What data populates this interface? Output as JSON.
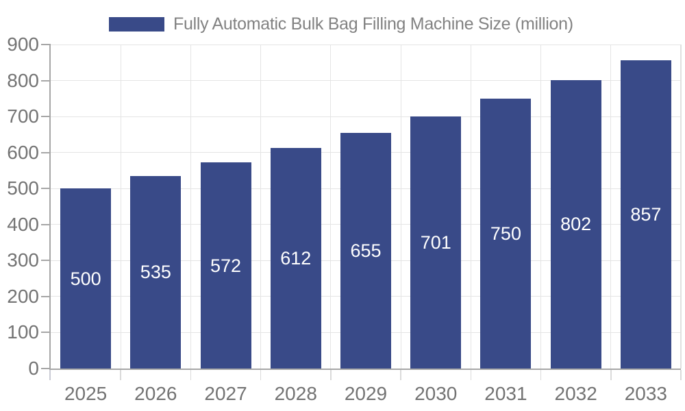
{
  "legend": {
    "swatch_color": "#394a88",
    "label": "Fully Automatic Bulk Bag Filling Machine Size (million)"
  },
  "chart_data": {
    "type": "bar",
    "title": "Fully Automatic Bulk Bag Filling Machine Size (million)",
    "categories": [
      "2025",
      "2026",
      "2027",
      "2028",
      "2029",
      "2030",
      "2031",
      "2032",
      "2033"
    ],
    "values": [
      500,
      535,
      572,
      612,
      655,
      701,
      750,
      802,
      857
    ],
    "series": [
      {
        "name": "Fully Automatic Bulk Bag Filling Machine Size (million)",
        "values": [
          500,
          535,
          572,
          612,
          655,
          701,
          750,
          802,
          857
        ]
      }
    ],
    "xlabel": "",
    "ylabel": "",
    "ylim": [
      0,
      900
    ],
    "yticks": [
      0,
      100,
      200,
      300,
      400,
      500,
      600,
      700,
      800,
      900
    ],
    "grid": true,
    "legend_position": "top",
    "value_labels": "inside-center"
  },
  "colors": {
    "bar": "#394a88",
    "axis_line": "#a6a6a6",
    "axis_tick_below": "#c9cbd4",
    "grid_line": "#e4e4e4",
    "tick_light": "#dadada",
    "axis_label": "#737373",
    "title_text": "#828282",
    "value_label": "#ffffff",
    "plot_border": "#e0e0e0",
    "background": "#ffffff"
  }
}
